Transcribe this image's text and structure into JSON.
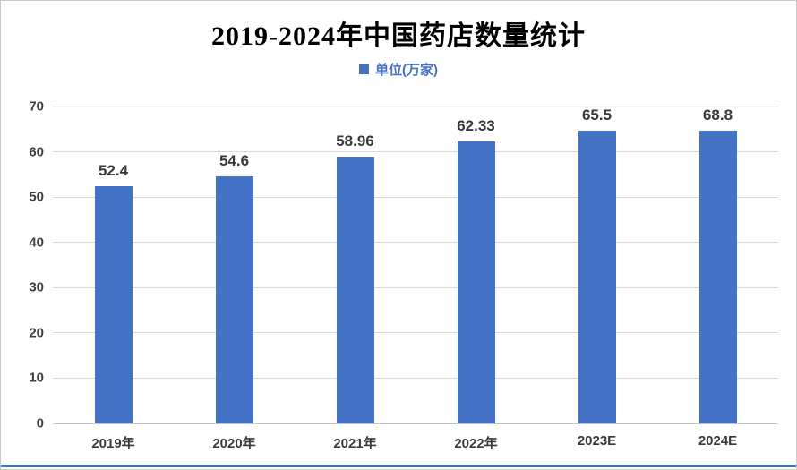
{
  "chart_data": {
    "type": "bar",
    "title": "2019-2024年中国药店数量统计",
    "legend": "单位(万家)",
    "categories": [
      "2019年",
      "2020年",
      "2021年",
      "2022年",
      "2023E",
      "2024E"
    ],
    "values": [
      52.4,
      54.6,
      58.96,
      62.33,
      65.5,
      68.8
    ],
    "value_labels": [
      "52.4",
      "54.6",
      "58.96",
      "62.33",
      "65.5",
      "68.8"
    ],
    "ylim": [
      0,
      70
    ],
    "yticks": [
      0,
      10,
      20,
      30,
      40,
      50,
      60,
      70
    ],
    "grid": "horizontal",
    "legend_position": "top-center",
    "colors": {
      "bar": "#4472C4",
      "legend_text": "#4472C4",
      "gridline": "#D9D9D9",
      "axis_line": "#C2C2C2",
      "value_label": "#383838",
      "tick_label": "#3F3F3F",
      "title": "#000000",
      "bottom_accent": "#4472C4",
      "frame_border": "#C9C9C9"
    }
  }
}
